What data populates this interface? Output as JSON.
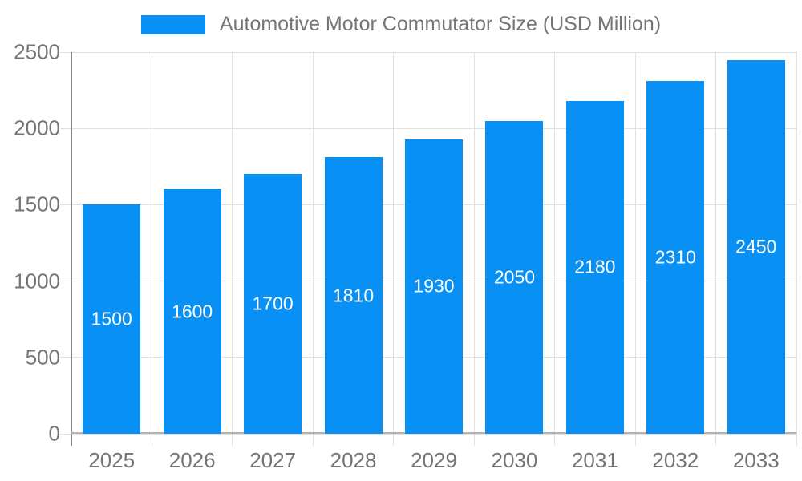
{
  "chart_data": {
    "type": "bar",
    "title": "Automotive Motor Commutator Size (USD Million)",
    "categories": [
      "2025",
      "2026",
      "2027",
      "2028",
      "2029",
      "2030",
      "2031",
      "2032",
      "2033"
    ],
    "values": [
      1500,
      1600,
      1700,
      1810,
      1930,
      2050,
      2180,
      2310,
      2450
    ],
    "xlabel": "",
    "ylabel": "",
    "ylim": [
      0,
      2500
    ],
    "yticks": [
      0,
      500,
      1000,
      1500,
      2000,
      2500
    ],
    "grid": true,
    "legend_position": "top",
    "value_labels": "inside-center-white",
    "colors": {
      "bar": "#0890f5",
      "axis_text": "#757575",
      "legend_text": "#757575",
      "gridline": "#e0e0e0",
      "y_axis_line": "#878787",
      "x_axis_line": "#b3b3b3",
      "value_label": "#ffffff",
      "background": "#ffffff"
    }
  }
}
